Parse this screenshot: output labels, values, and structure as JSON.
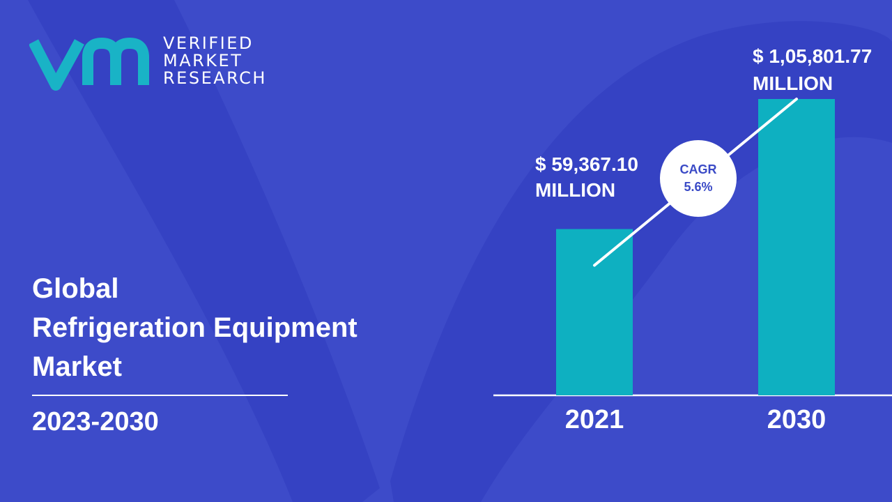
{
  "brand": {
    "lines": [
      "VERIFIED",
      "MARKET",
      "RESEARCH"
    ],
    "colors": {
      "mark": "#19b3c6",
      "background": "#3d4bc9",
      "bar": "#0eb0c1",
      "cagr_text": "#3a4ac6"
    }
  },
  "report": {
    "title_lines": [
      "Global",
      "Refrigeration Equipment",
      "Market"
    ],
    "period": "2023-2030"
  },
  "chart_data": {
    "type": "bar",
    "categories": [
      "2021",
      "2030"
    ],
    "values": [
      59367.1,
      105801.77
    ],
    "value_labels": [
      [
        "$ 59,367.10",
        "MILLION"
      ],
      [
        "$ 1,05,801.77",
        "MILLION"
      ]
    ],
    "unit": "MILLION",
    "cagr_label": "CAGR",
    "cagr_value": "5.6%",
    "title": "",
    "xlabel": "",
    "ylabel": "",
    "ylim": [
      0,
      105801.77
    ],
    "grid": false,
    "legend": "none"
  }
}
